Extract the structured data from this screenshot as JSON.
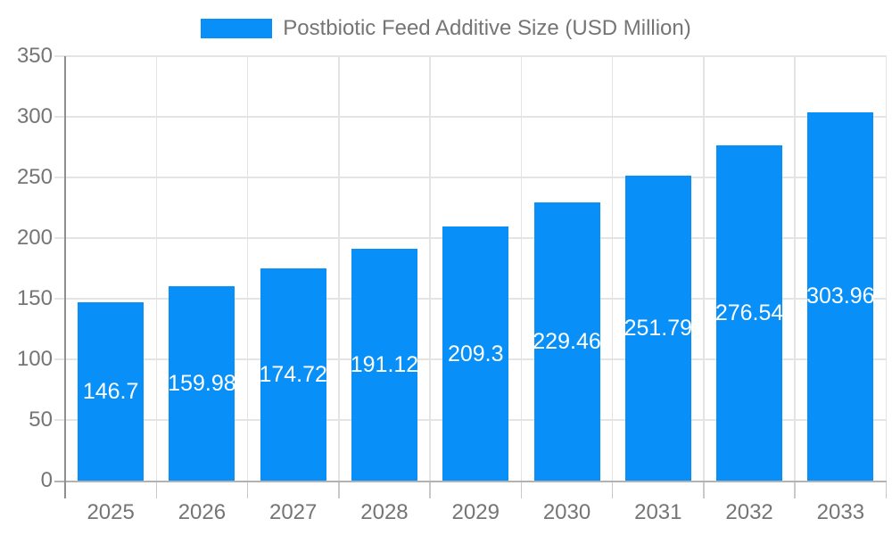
{
  "legend": {
    "label": "Postbiotic Feed Additive Size (USD Million)",
    "position": "top-center"
  },
  "chart_data": {
    "type": "bar",
    "title": "Postbiotic Feed Additive Size (USD Million)",
    "series_name": "Postbiotic Feed Additive Size (USD Million)",
    "categories": [
      "2025",
      "2026",
      "2027",
      "2028",
      "2029",
      "2030",
      "2031",
      "2032",
      "2033"
    ],
    "values": [
      146.7,
      159.98,
      174.72,
      191.12,
      209.3,
      229.46,
      251.79,
      276.54,
      303.96
    ],
    "value_labels": [
      "146.7",
      "159.98",
      "174.72",
      "191.12",
      "209.3",
      "229.46",
      "251.79",
      "276.54",
      "303.96"
    ],
    "xlabel": "",
    "ylabel": "",
    "ylim": [
      0,
      350
    ],
    "yticks": [
      0,
      50,
      100,
      150,
      200,
      250,
      300,
      350
    ],
    "grid": true,
    "legend_position": "top",
    "colors": {
      "bar": "#0890f8",
      "value_label": "#ffffff",
      "axis_text": "#757575",
      "gridline": "#e4e4e4",
      "axis_line": "#8f8f8f",
      "baseline": "#b2b2b2",
      "tick": "#c9c9c9"
    }
  }
}
